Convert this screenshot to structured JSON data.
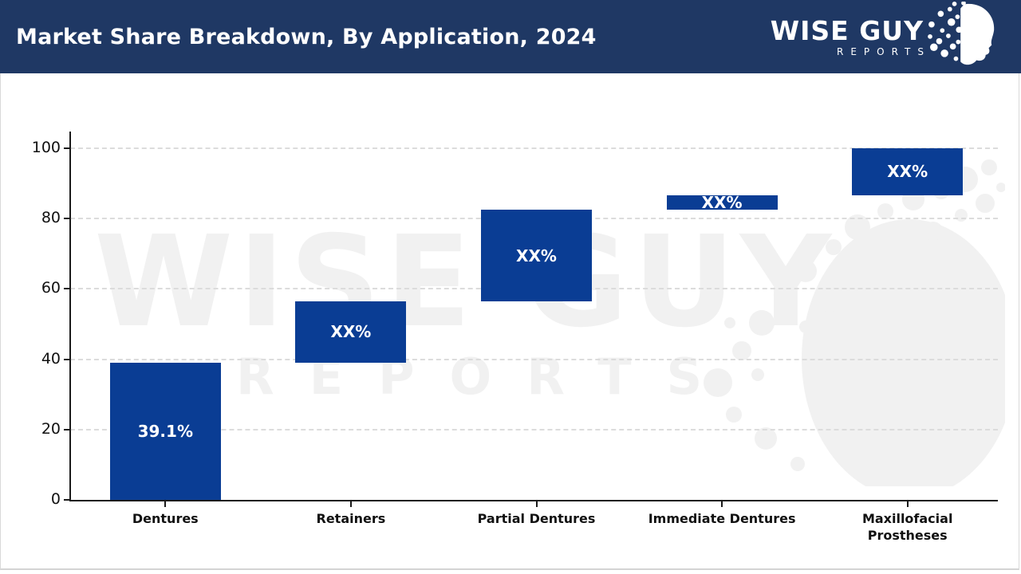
{
  "header": {
    "brand": {
      "line1": "WISE GUY",
      "line2": "REPORTS"
    }
  },
  "watermark": {
    "line1": "WISE GUY",
    "line2": "REPORTS"
  },
  "chart_data": {
    "type": "bar",
    "subtype": "waterfall",
    "title": "Market Share Breakdown, By Application, 2024",
    "categories": [
      "Dentures",
      "Retainers",
      "Partial Dentures",
      "Immediate Dentures",
      "Maxillofacial Prostheses"
    ],
    "segments": [
      {
        "category": "Dentures",
        "start": 0,
        "end": 39.1,
        "value": 39.1,
        "label": "39.1%"
      },
      {
        "category": "Retainers",
        "start": 39.1,
        "end": 56.5,
        "value": 17.4,
        "label": "XX%"
      },
      {
        "category": "Partial Dentures",
        "start": 56.5,
        "end": 82.5,
        "value": 26.0,
        "label": "XX%"
      },
      {
        "category": "Immediate Dentures",
        "start": 82.5,
        "end": 86.7,
        "value": 4.2,
        "label": "XX%"
      },
      {
        "category": "Maxillofacial Prostheses",
        "start": 86.7,
        "end": 100,
        "value": 13.3,
        "label": "XX%"
      }
    ],
    "xlabel": "",
    "ylabel": "",
    "ylim": [
      0,
      100
    ],
    "yticks": [
      0,
      20,
      40,
      60,
      80,
      100
    ],
    "grid": "horizontal-dashed",
    "legend": "none",
    "bar_color": "#0a3d94",
    "label_color": "#ffffff",
    "header_bg": "#1f3864",
    "axis_color": "#1a1a1a"
  }
}
